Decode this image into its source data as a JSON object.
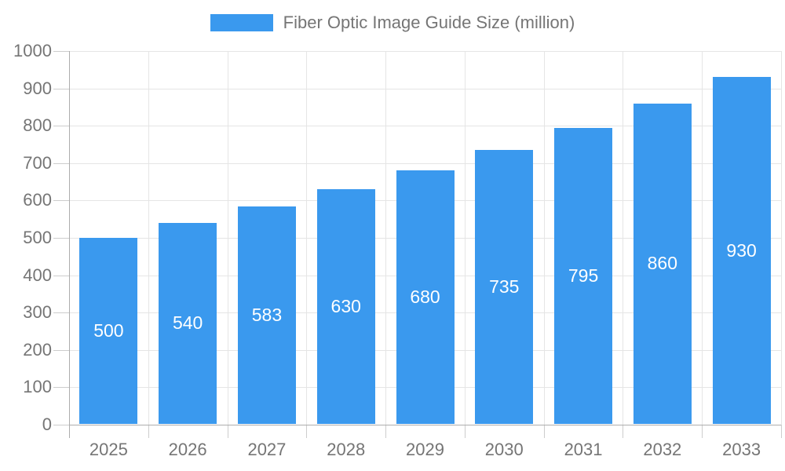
{
  "legend": {
    "items": [
      {
        "label": "Fiber Optic Image Guide Size (million)"
      }
    ]
  },
  "chart_data": {
    "type": "bar",
    "title": "Fiber Optic Image Guide Size (million)",
    "categories": [
      "2025",
      "2026",
      "2027",
      "2028",
      "2029",
      "2030",
      "2031",
      "2032",
      "2033"
    ],
    "values": [
      500,
      540,
      583,
      630,
      680,
      735,
      795,
      860,
      930
    ],
    "xlabel": "",
    "ylabel": "",
    "ylim": [
      0,
      1000
    ],
    "ytick_step": 100,
    "yticks": [
      0,
      100,
      200,
      300,
      400,
      500,
      600,
      700,
      800,
      900,
      1000
    ],
    "grid": true,
    "legend_position": "top",
    "value_labels": "inside-middle",
    "colors": {
      "bar": "#3A99EE",
      "value_label": "#FFFFFF",
      "axis_text": "#757575",
      "grid_line": "#E5E5E5",
      "tick_line": "#CDCDCD",
      "axis_line": "#ADADAD",
      "background": "#FFFFFF"
    }
  }
}
